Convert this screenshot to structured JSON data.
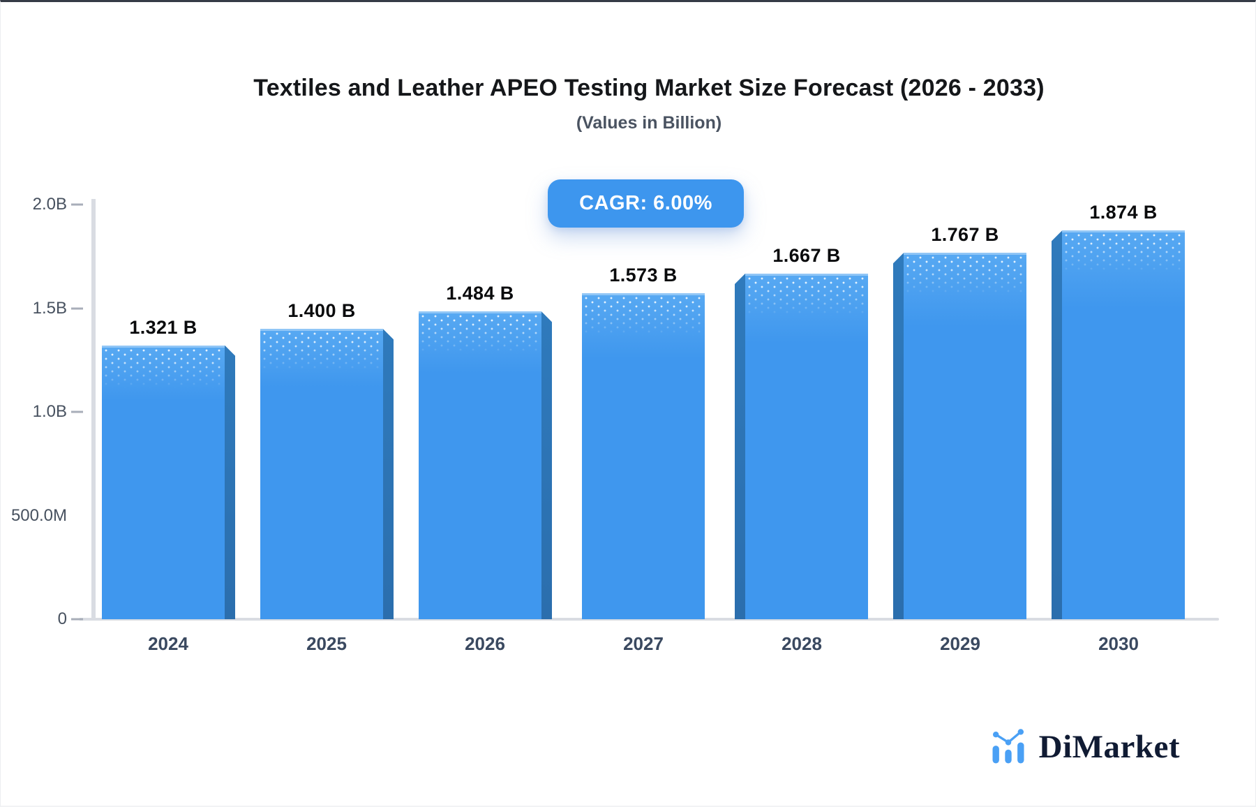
{
  "chart_data": {
    "type": "bar",
    "title": "Textiles and Leather APEO Testing Market Size Forecast (2026 - 2033)",
    "subtitle": "(Values in Billion)",
    "categories": [
      "2024",
      "2025",
      "2026",
      "2027",
      "2028",
      "2029",
      "2030"
    ],
    "values": [
      1.321,
      1.4,
      1.484,
      1.573,
      1.667,
      1.767,
      1.874
    ],
    "value_labels": [
      "1.321 B",
      "1.400 B",
      "1.484 B",
      "1.573 B",
      "1.667 B",
      "1.767 B",
      "1.874 B"
    ],
    "unit": "Billion",
    "ylim": [
      0,
      2.0
    ],
    "yaxis_ticks": [
      {
        "label": "2.0B",
        "value": 2.0,
        "dash": true
      },
      {
        "label": "1.5B",
        "value": 1.5,
        "dash": true
      },
      {
        "label": "1.0B",
        "value": 1.0,
        "dash": true
      },
      {
        "label": "500.0M",
        "value": 0.5,
        "dash": false
      },
      {
        "label": "0",
        "value": 0.0,
        "dash": true
      }
    ],
    "grid": false,
    "legend": false,
    "annotation": {
      "label": "CAGR: 6.00%"
    },
    "colors": {
      "bar_top": "#58a9f2",
      "bar": "#3f97ee",
      "bar_side_top": "#2f7abc",
      "bar_side_bottom": "#2b6ead",
      "accent": "#3d96ee"
    }
  },
  "logo": {
    "text": "DiMarket",
    "icon": "bar-chart-logo-icon",
    "icon_color": "#4aa0f5",
    "text_color": "#101b33"
  }
}
